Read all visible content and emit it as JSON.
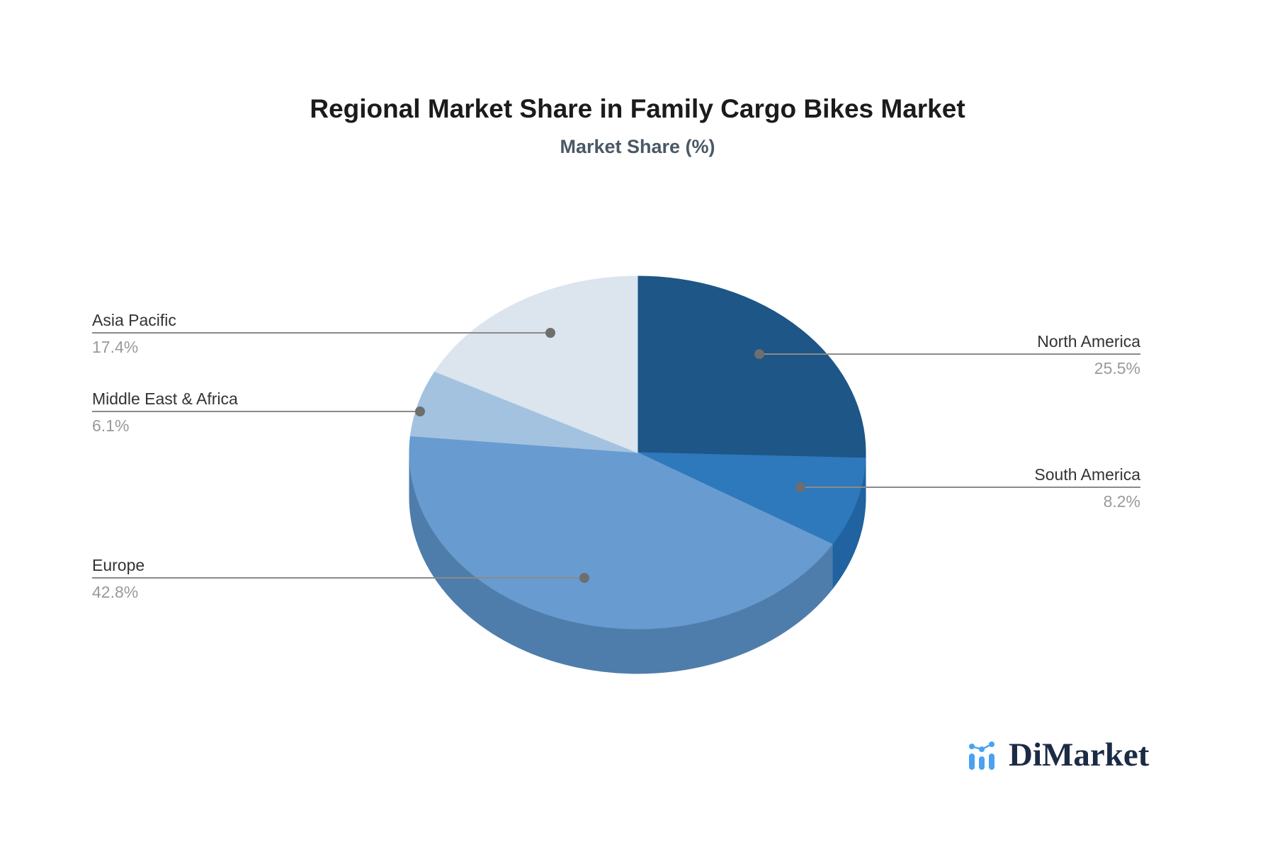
{
  "title": "Regional Market Share in Family Cargo Bikes Market",
  "subtitle": "Market Share (%)",
  "brand": {
    "name": "DiMarket"
  },
  "chart_data": {
    "type": "pie",
    "title": "Regional Market Share in Family Cargo Bikes Market",
    "subtitle": "Market Share (%)",
    "unit": "%",
    "style": "3d-pie",
    "start_angle_deg": -90,
    "direction": "clockwise",
    "legend_position": "callout-labels",
    "slices": [
      {
        "label": "North America",
        "value": 25.5,
        "display": "25.5%",
        "color": "#1d5687",
        "side_color": "#17466f",
        "label_side": "right"
      },
      {
        "label": "South America",
        "value": 8.2,
        "display": "8.2%",
        "color": "#2e78bc",
        "side_color": "#2063a0",
        "label_side": "right"
      },
      {
        "label": "Europe",
        "value": 42.8,
        "display": "42.8%",
        "color": "#689bd0",
        "side_color": "#4f7dab",
        "label_side": "left"
      },
      {
        "label": "Middle East & Africa",
        "value": 6.1,
        "display": "6.1%",
        "color": "#a2c2e0",
        "side_color": null,
        "label_side": "left"
      },
      {
        "label": "Asia Pacific",
        "value": 17.4,
        "display": "17.4%",
        "color": "#dce4ee",
        "side_color": null,
        "label_side": "left"
      }
    ],
    "leader_line_color": "#8a8a8a",
    "leader_dot_color": "#6e6e6e",
    "label_text_color": "#333333",
    "value_text_color": "#9a9a9a",
    "accent_blue": "#4aa2f2",
    "brand_navy": "#1c2b45"
  }
}
